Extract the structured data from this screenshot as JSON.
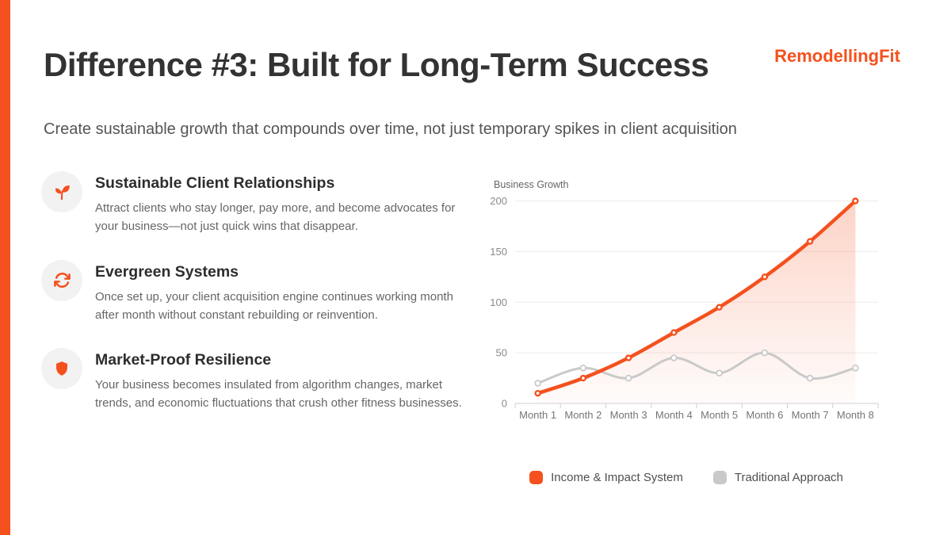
{
  "header": {
    "title": "Difference #3: Built for Long-Term Success",
    "logo": "RemodellingFit",
    "subtitle": "Create sustainable growth that compounds over time, not just temporary spikes in client acquisition"
  },
  "features": [
    {
      "icon": "sprout-icon",
      "title": "Sustainable Client Relationships",
      "description": "Attract clients who stay longer, pay more, and become advocates for your business—not just quick wins that disappear."
    },
    {
      "icon": "refresh-icon",
      "title": "Evergreen Systems",
      "description": "Once set up, your client acquisition engine continues working month after month without constant rebuilding or reinvention."
    },
    {
      "icon": "shield-icon",
      "title": "Market-Proof Resilience",
      "description": "Your business becomes insulated from algorithm changes, market trends, and economic fluctuations that crush other fitness businesses."
    }
  ],
  "chart_data": {
    "type": "line",
    "title": "Business Growth",
    "xlabel": "",
    "ylabel": "",
    "categories": [
      "Month 1",
      "Month 2",
      "Month 3",
      "Month 4",
      "Month 5",
      "Month 6",
      "Month 7",
      "Month 8"
    ],
    "series": [
      {
        "name": "Income & Impact System",
        "color": "#F4511E",
        "area": true,
        "values": [
          10,
          25,
          45,
          70,
          95,
          125,
          160,
          200
        ]
      },
      {
        "name": "Traditional Approach",
        "color": "#C9C9C9",
        "area": false,
        "values": [
          20,
          35,
          25,
          45,
          30,
          50,
          25,
          35
        ]
      }
    ],
    "ylim": [
      0,
      200
    ],
    "yticks": [
      0,
      50,
      100,
      150,
      200
    ],
    "grid": true,
    "legend_position": "bottom"
  },
  "colors": {
    "accent": "#F4511E",
    "traditional_gray": "#C9C9C9",
    "title_text": "#333333",
    "body_text": "#666666",
    "icon_circle_bg": "#f2f2f2"
  }
}
